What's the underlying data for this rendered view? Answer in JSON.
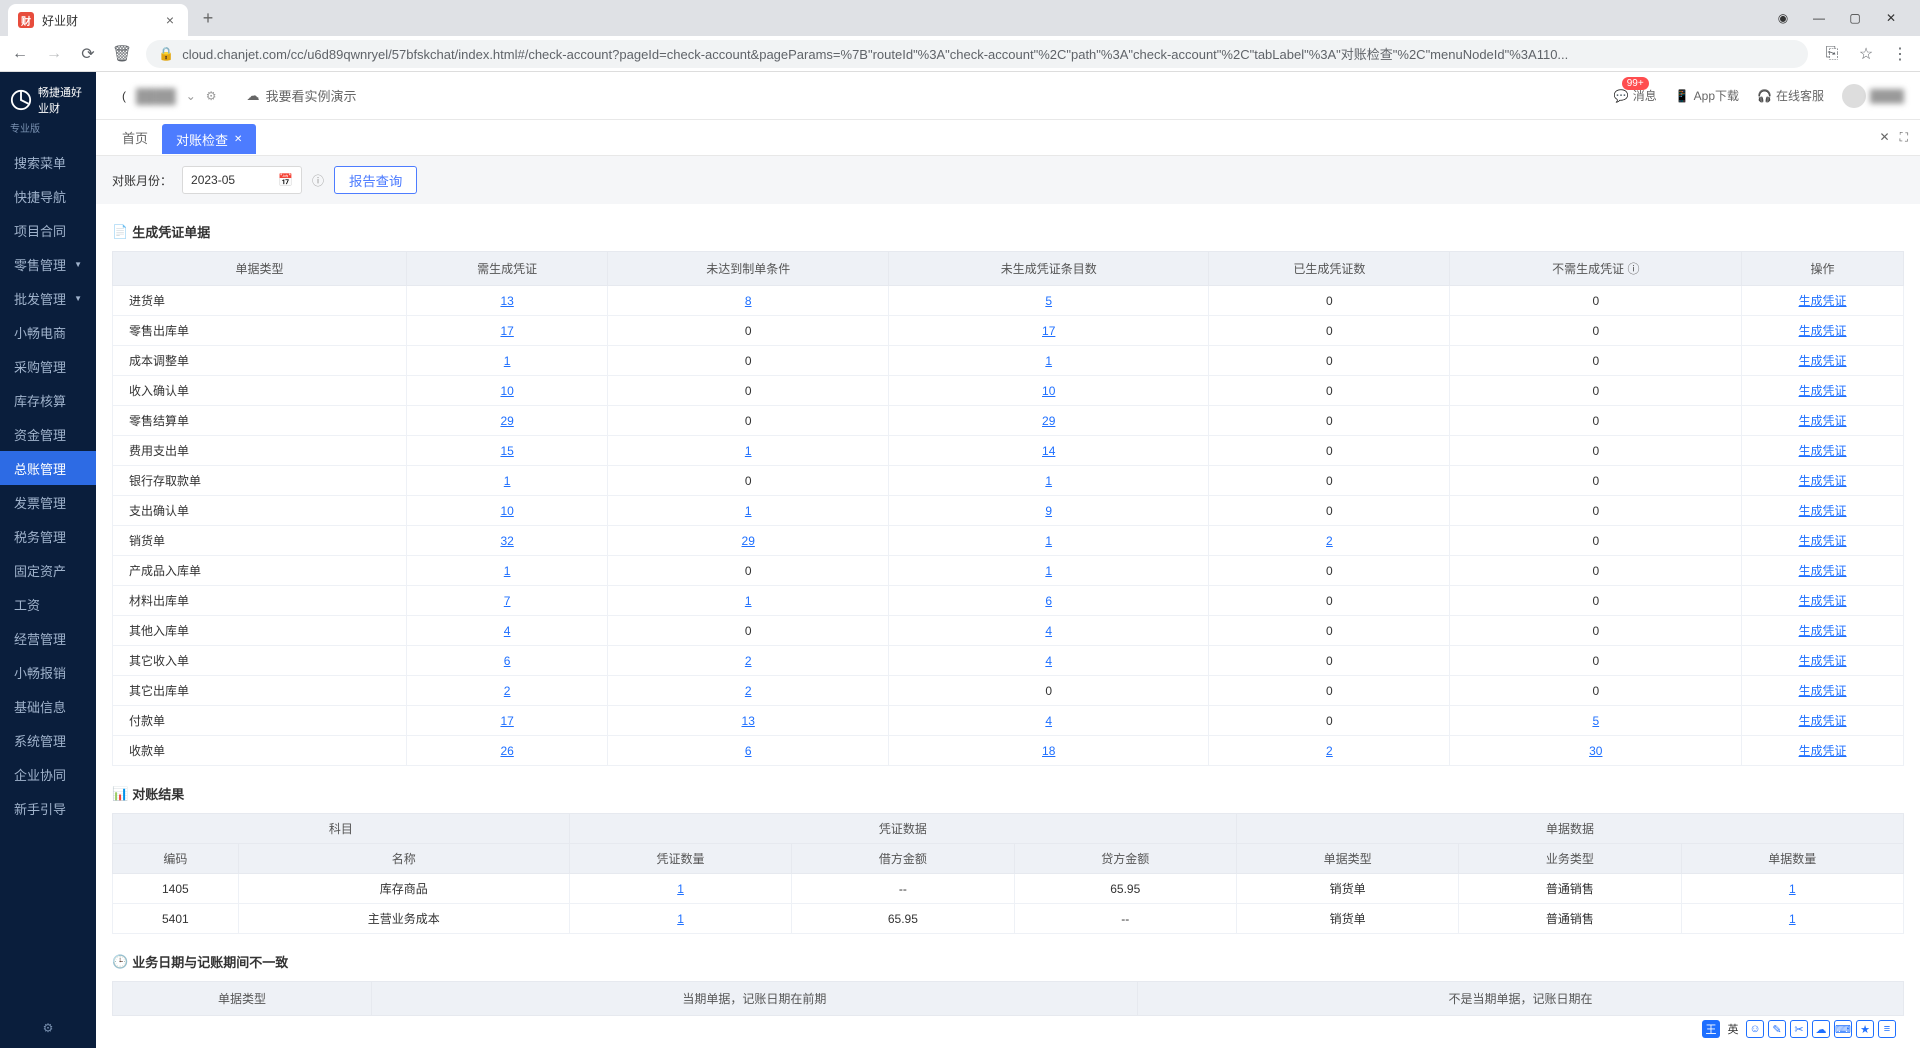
{
  "browser": {
    "tab_title": "好业财",
    "url": "cloud.chanjet.com/cc/u6d89qwnryel/57bfskchat/index.html#/check-account?pageId=check-account&pageParams=%7B\"routeId\"%3A\"check-account\"%2C\"path\"%3A\"check-account\"%2C\"tabLabel\"%3A\"对账检查\"%2C\"menuNodeId\"%3A110..."
  },
  "logo": {
    "text": "畅捷通好业财",
    "sub": "专业版"
  },
  "sidebar": [
    {
      "label": "搜索菜单",
      "arrow": false
    },
    {
      "label": "快捷导航",
      "arrow": false
    },
    {
      "label": "项目合同",
      "arrow": false
    },
    {
      "label": "零售管理",
      "arrow": true
    },
    {
      "label": "批发管理",
      "arrow": true
    },
    {
      "label": "小畅电商",
      "arrow": false
    },
    {
      "label": "采购管理",
      "arrow": false
    },
    {
      "label": "库存核算",
      "arrow": false
    },
    {
      "label": "资金管理",
      "arrow": false
    },
    {
      "label": "总账管理",
      "arrow": false,
      "active": true
    },
    {
      "label": "发票管理",
      "arrow": false
    },
    {
      "label": "税务管理",
      "arrow": false
    },
    {
      "label": "固定资产",
      "arrow": false
    },
    {
      "label": "工资",
      "arrow": false
    },
    {
      "label": "经营管理",
      "arrow": false
    },
    {
      "label": "小畅报销",
      "arrow": false
    },
    {
      "label": "基础信息",
      "arrow": false
    },
    {
      "label": "系统管理",
      "arrow": false
    },
    {
      "label": "企业协同",
      "arrow": false
    },
    {
      "label": "新手引导",
      "arrow": false
    }
  ],
  "topbar": {
    "company": "████",
    "demo_link": "我要看实例演示",
    "msg": "消息",
    "msg_badge": "99+",
    "app": "App下载",
    "support": "在线客服",
    "user": "████"
  },
  "tabs": {
    "home": "首页",
    "active": "对账检查"
  },
  "filter": {
    "month_label": "对账月份：",
    "month_value": "2023-05",
    "query_btn": "报告查询"
  },
  "section1": {
    "title": "生成凭证单据",
    "columns": [
      "单据类型",
      "需生成凭证",
      "未达到制单条件",
      "未生成凭证条目数",
      "已生成凭证数",
      "不需生成凭证 ⓘ",
      "操作"
    ],
    "action_label": "生成凭证",
    "rows": [
      {
        "name": "进货单",
        "c1": "13",
        "c2": "8",
        "c3": "5",
        "c4": "0",
        "c5": "0"
      },
      {
        "name": "零售出库单",
        "c1": "17",
        "c2": "0",
        "c3": "17",
        "c4": "0",
        "c5": "0"
      },
      {
        "name": "成本调整单",
        "c1": "1",
        "c2": "0",
        "c3": "1",
        "c4": "0",
        "c5": "0"
      },
      {
        "name": "收入确认单",
        "c1": "10",
        "c2": "0",
        "c3": "10",
        "c4": "0",
        "c5": "0"
      },
      {
        "name": "零售结算单",
        "c1": "29",
        "c2": "0",
        "c3": "29",
        "c4": "0",
        "c5": "0"
      },
      {
        "name": "费用支出单",
        "c1": "15",
        "c2": "1",
        "c3": "14",
        "c4": "0",
        "c5": "0"
      },
      {
        "name": "银行存取款单",
        "c1": "1",
        "c2": "0",
        "c3": "1",
        "c4": "0",
        "c5": "0"
      },
      {
        "name": "支出确认单",
        "c1": "10",
        "c2": "1",
        "c3": "9",
        "c4": "0",
        "c5": "0"
      },
      {
        "name": "销货单",
        "c1": "32",
        "c2": "29",
        "c3": "1",
        "c4": "2",
        "c5": "0"
      },
      {
        "name": "产成品入库单",
        "c1": "1",
        "c2": "0",
        "c3": "1",
        "c4": "0",
        "c5": "0"
      },
      {
        "name": "材料出库单",
        "c1": "7",
        "c2": "1",
        "c3": "6",
        "c4": "0",
        "c5": "0"
      },
      {
        "name": "其他入库单",
        "c1": "4",
        "c2": "0",
        "c3": "4",
        "c4": "0",
        "c5": "0"
      },
      {
        "name": "其它收入单",
        "c1": "6",
        "c2": "2",
        "c3": "4",
        "c4": "0",
        "c5": "0"
      },
      {
        "name": "其它出库单",
        "c1": "2",
        "c2": "2",
        "c3": "0",
        "c4": "0",
        "c5": "0"
      },
      {
        "name": "付款单",
        "c1": "17",
        "c2": "13",
        "c3": "4",
        "c4": "0",
        "c5": "5"
      },
      {
        "name": "收款单",
        "c1": "26",
        "c2": "6",
        "c3": "18",
        "c4": "2",
        "c5": "30"
      }
    ]
  },
  "section2": {
    "title": "对账结果",
    "header_groups": [
      "科目",
      "凭证数据",
      "单据数据"
    ],
    "columns": [
      "编码",
      "名称",
      "凭证数量",
      "借方金额",
      "贷方金额",
      "单据类型",
      "业务类型",
      "单据数量"
    ],
    "rows": [
      {
        "code": "1405",
        "name": "库存商品",
        "qty": "1",
        "debit": "--",
        "credit": "65.95",
        "dtype": "销货单",
        "btype": "普通销售",
        "dqty": "1"
      },
      {
        "code": "5401",
        "name": "主营业务成本",
        "qty": "1",
        "debit": "65.95",
        "credit": "--",
        "dtype": "销货单",
        "btype": "普通销售",
        "dqty": "1"
      }
    ]
  },
  "section3": {
    "title": "业务日期与记账期间不一致",
    "columns": [
      "单据类型",
      "当期单据，记账日期在前期",
      "不是当期单据，记账日期在"
    ]
  },
  "colors": {
    "sidebar_bg": "#0a1e3c",
    "primary": "#4d7cff",
    "link": "#1e6fff",
    "th_bg": "#eef1f6",
    "border": "#e6e9ef"
  }
}
